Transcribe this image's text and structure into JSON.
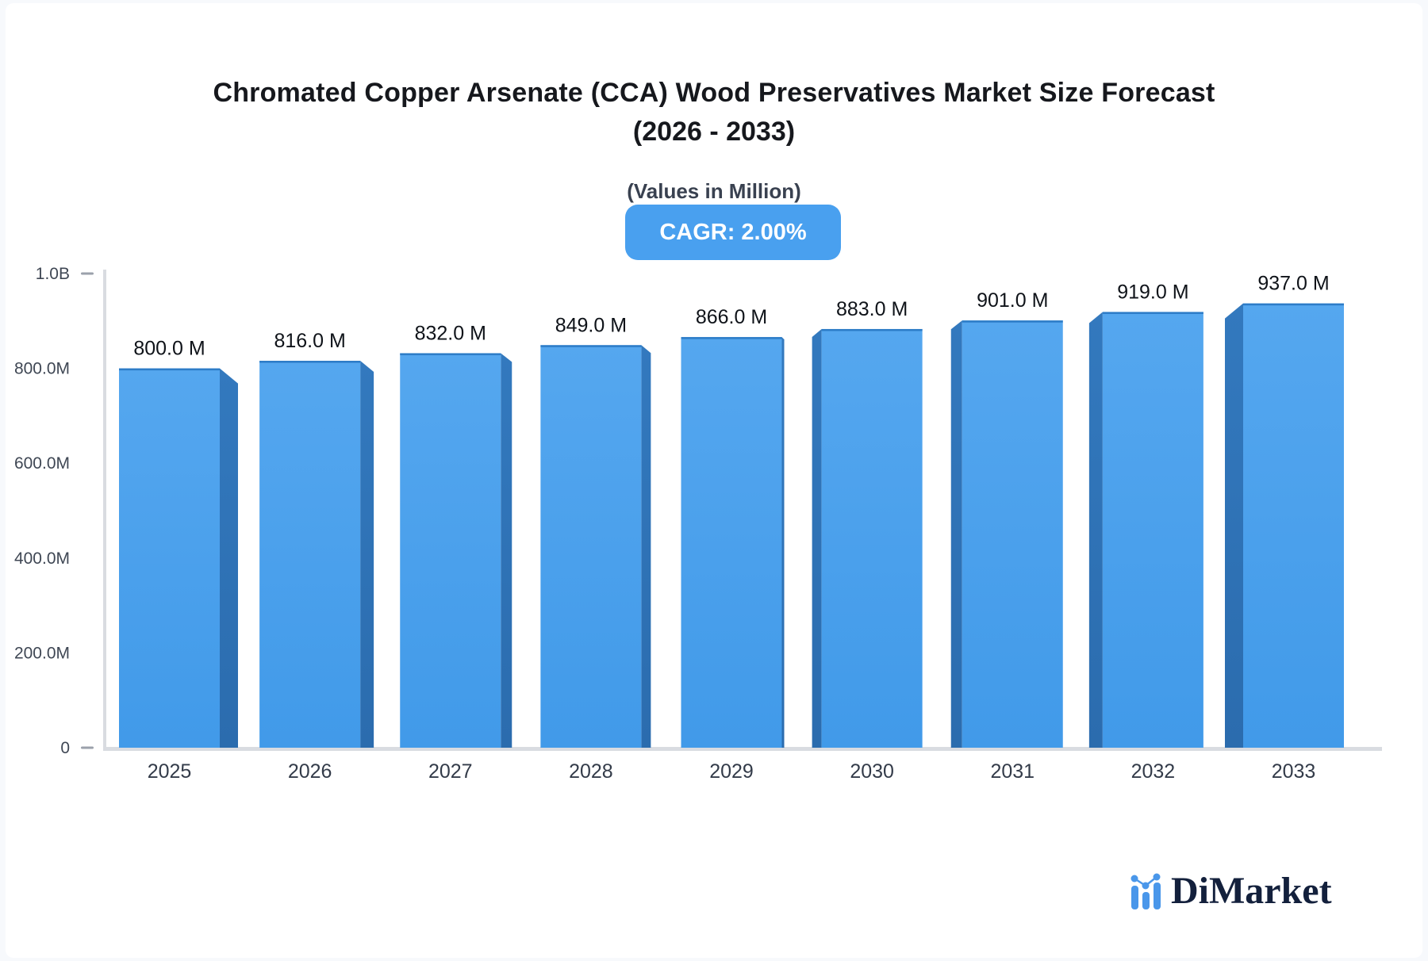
{
  "title": {
    "line1": "Chromated Copper Arsenate (CCA) Wood Preservatives Market Size Forecast",
    "line2": "(2026 - 2033)",
    "subtitle": "(Values in Million)"
  },
  "badge": {
    "label": "CAGR: 2.00%"
  },
  "brand": {
    "name": "DiMarket"
  },
  "colors": {
    "bar_face_top": "#55A7EF",
    "bar_face_bottom": "#419AE9",
    "bar_side_top": "#3379BE",
    "bar_side_bottom": "#2B6CAE",
    "bar_top_edge": "#2D7CC7",
    "axis_line": "#D9DCE1",
    "tick_dash": "#9BA1AB",
    "badge_bg": "#49A0EF",
    "badge_text": "#FFFFFF",
    "logo_blue": "#4A97EA",
    "logo_text": "#13203C",
    "value_label_text": "#0F1319",
    "x_label_text": "#333B49",
    "y_tick_text": "#3F4754"
  },
  "chart_data": {
    "type": "bar",
    "title": "Chromated Copper Arsenate (CCA) Wood Preservatives Market Size Forecast (2026 - 2033)",
    "subtitle": "(Values in Million)",
    "cagr": "2.00%",
    "categories": [
      "2025",
      "2026",
      "2027",
      "2028",
      "2029",
      "2030",
      "2031",
      "2032",
      "2033"
    ],
    "values": [
      800,
      816,
      832,
      849,
      866,
      883,
      901,
      919,
      937
    ],
    "data_labels": [
      "800.0 M",
      "816.0 M",
      "832.0 M",
      "849.0 M",
      "866.0 M",
      "883.0 M",
      "901.0 M",
      "919.0 M",
      "937.0 M"
    ],
    "value_unit": "Million",
    "ylim": [
      0,
      1000
    ],
    "yticks": [
      {
        "label": "1.0B",
        "value": 1000,
        "dash": true
      },
      {
        "label": "800.0M",
        "value": 800,
        "dash": false
      },
      {
        "label": "600.0M",
        "value": 600,
        "dash": false
      },
      {
        "label": "400.0M",
        "value": 400,
        "dash": false
      },
      {
        "label": "200.0M",
        "value": 200,
        "dash": false
      },
      {
        "label": "0",
        "value": 0,
        "dash": true
      }
    ],
    "grid": false,
    "legend": false,
    "style": "3d-center-perspective-bars"
  }
}
